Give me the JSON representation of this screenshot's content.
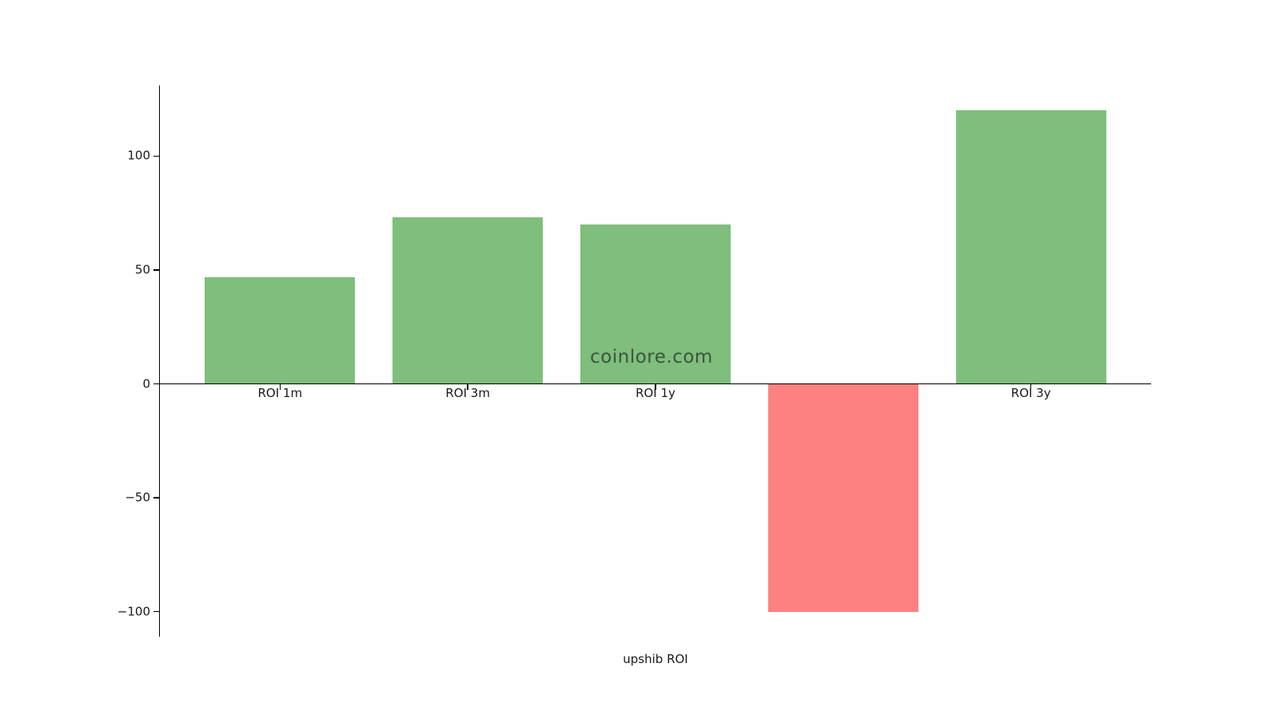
{
  "watermark": "coinlore.com",
  "chart_data": {
    "type": "bar",
    "title": "upshib ROI",
    "categories": [
      "ROI 1m",
      "ROI 3m",
      "ROI 1y",
      "",
      "ROI 3y"
    ],
    "values": [
      47,
      73,
      70,
      -100,
      120
    ],
    "bar_colors": [
      "#7fbe7c",
      "#7fbe7c",
      "#7fbe7c",
      "#fd8181",
      "#7fbe7c"
    ],
    "positive_color": "#7fbe7c",
    "negative_color": "#fd8181",
    "bar_width": 0.8,
    "xlim": [
      -0.64,
      4.64
    ],
    "ylim": [
      -111,
      131
    ],
    "y_ticks": [
      100,
      50,
      0,
      -50,
      -100
    ],
    "y_tick_labels": [
      "100",
      "50",
      "0",
      "−50",
      "−100"
    ],
    "xlabel": "",
    "ylabel": "",
    "grid": false,
    "legend": null,
    "axis_color": "#000000",
    "tick_label_color": "#1a1a1a"
  }
}
